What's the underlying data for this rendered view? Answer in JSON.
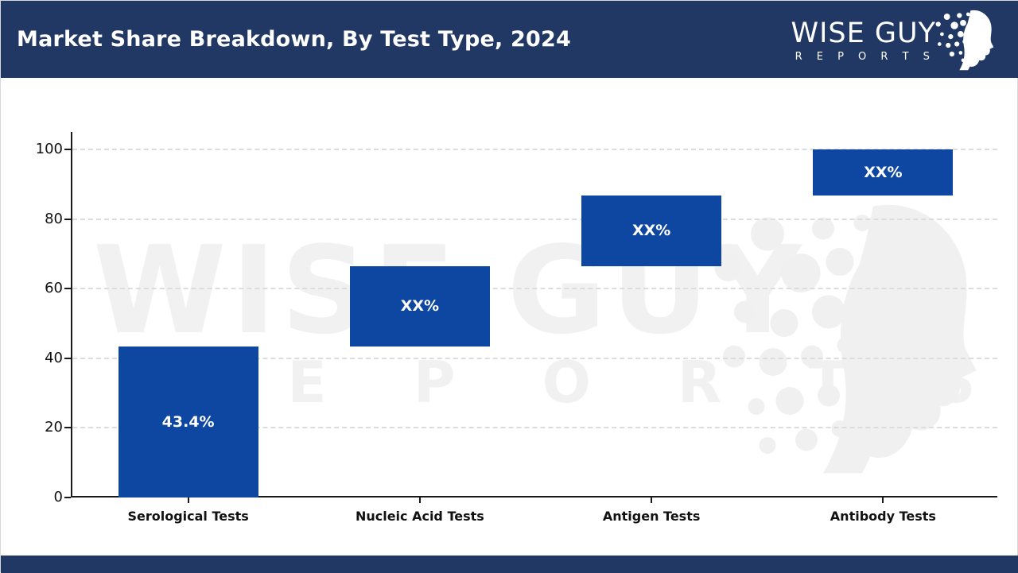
{
  "header": {
    "title": "Market Share Breakdown, By Test Type, 2024",
    "logo": {
      "line1": "WISE GUY",
      "line2": "R E P O R T S"
    }
  },
  "watermark": {
    "line1": "WISE GUY",
    "line2": "R E P O R T S"
  },
  "chart_data": {
    "type": "bar",
    "subtype": "waterfall-floating-bars",
    "title": "Market Share Breakdown, By Test Type, 2024",
    "categories": [
      "Serological Tests",
      "Nucleic Acid Tests",
      "Antigen Tests",
      "Antibody Tests"
    ],
    "bars": [
      {
        "category": "Serological Tests",
        "start": 0,
        "end": 43.4,
        "label": "43.4%"
      },
      {
        "category": "Nucleic Acid Tests",
        "start": 43.4,
        "end": 66.4,
        "label": "XX%"
      },
      {
        "category": "Antigen Tests",
        "start": 66.4,
        "end": 86.8,
        "label": "XX%"
      },
      {
        "category": "Antibody Tests",
        "start": 86.8,
        "end": 100,
        "label": "XX%"
      }
    ],
    "xlabel": "",
    "ylabel": "",
    "yticks": [
      0,
      20,
      40,
      60,
      80,
      100
    ],
    "ylim": [
      0,
      105
    ],
    "grid": "horizontal-dashed",
    "legend": "none"
  },
  "colors": {
    "header_bg": "#213764",
    "footer_bg": "#213764",
    "bar": "#0d47a1",
    "bar_label": "#ffffff",
    "axis": "#1a1a1a",
    "grid": "#dcdcdc",
    "watermark": "#f1f1f1"
  }
}
